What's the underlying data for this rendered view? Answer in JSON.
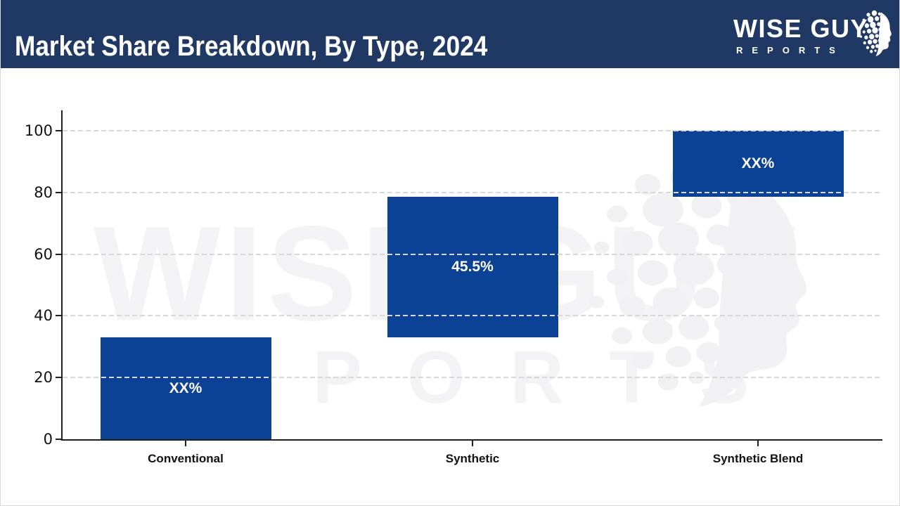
{
  "header": {
    "title": "Market Share Breakdown, By Type, 2024"
  },
  "brand": {
    "wordmark": "WISE GUY",
    "wordmark_sub": "REPORTS",
    "head_icon": "dotted-head-profile-icon"
  },
  "watermark": {
    "line1": "WISE GUY",
    "line2": "REPORTS"
  },
  "chart_data": {
    "type": "bar",
    "subtype": "waterfall",
    "title": "Market Share Breakdown, By Type, 2024",
    "categories": [
      "Conventional",
      "Synthetic",
      "Synthetic Blend"
    ],
    "series": [
      {
        "name": "Market Share (%)",
        "segments": [
          {
            "category": "Conventional",
            "start": 0,
            "end": 33,
            "label": "XX%"
          },
          {
            "category": "Synthetic",
            "start": 33,
            "end": 78.5,
            "label": "45.5%"
          },
          {
            "category": "Synthetic Blend",
            "start": 78.5,
            "end": 100,
            "label": "XX%"
          }
        ]
      }
    ],
    "ylim": [
      0,
      100
    ],
    "yticks": [
      0,
      20,
      40,
      60,
      80,
      100
    ],
    "xlabel": "",
    "ylabel": "",
    "grid": "horizontal-dashed",
    "legend": "none",
    "colors": {
      "bar": "#0b4296",
      "header": "#203864",
      "grid": "#d8d8d8",
      "axis": "#1f1f1f",
      "bar_label_text": "#ffffff"
    }
  }
}
